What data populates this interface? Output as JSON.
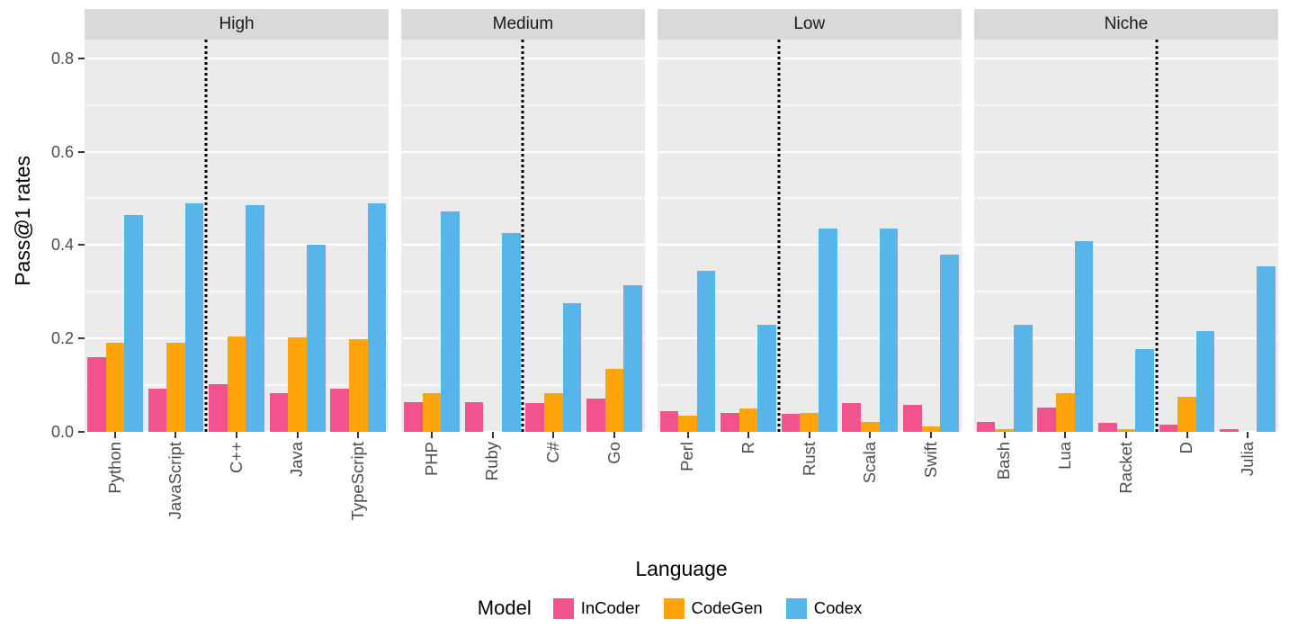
{
  "chart_data": {
    "type": "bar",
    "title": "",
    "xlabel": "Language",
    "ylabel": "Pass@1 rates",
    "ylim": [
      0,
      0.84
    ],
    "yticks": [
      0.0,
      0.2,
      0.4,
      0.6,
      0.8
    ],
    "grid": true,
    "legend_position": "bottom",
    "legend_title": "Model",
    "series_names": [
      "InCoder",
      "CodeGen",
      "Codex"
    ],
    "series_colors": [
      "#F0538D",
      "#FFA40B",
      "#58B5E9"
    ],
    "panel_background": "#ebebeb",
    "strip_background": "#d9d9d9",
    "facets": [
      {
        "label": "High",
        "divider_after_category": 2,
        "categories": [
          "Python",
          "JavaScript",
          "C++",
          "Java",
          "TypeScript"
        ],
        "series": [
          {
            "name": "InCoder",
            "values": [
              0.16,
              0.093,
              0.103,
              0.082,
              0.093
            ]
          },
          {
            "name": "CodeGen",
            "values": [
              0.19,
              0.19,
              0.205,
              0.203,
              0.199
            ]
          },
          {
            "name": "Codex",
            "values": [
              0.465,
              0.49,
              0.485,
              0.4,
              0.49
            ]
          }
        ]
      },
      {
        "label": "Medium",
        "divider_after_category": 2,
        "categories": [
          "PHP",
          "Ruby",
          "C#",
          "Go"
        ],
        "series": [
          {
            "name": "InCoder",
            "values": [
              0.063,
              0.063,
              0.062,
              0.072
            ]
          },
          {
            "name": "CodeGen",
            "values": [
              0.082,
              0.0,
              0.082,
              0.135
            ]
          },
          {
            "name": "Codex",
            "values": [
              0.473,
              0.426,
              0.275,
              0.315
            ]
          }
        ]
      },
      {
        "label": "Low",
        "divider_after_category": 2,
        "categories": [
          "Perl",
          "R",
          "Rust",
          "Scala",
          "Swift"
        ],
        "series": [
          {
            "name": "InCoder",
            "values": [
              0.045,
              0.04,
              0.038,
              0.062,
              0.058
            ]
          },
          {
            "name": "CodeGen",
            "values": [
              0.035,
              0.05,
              0.04,
              0.022,
              0.012
            ]
          },
          {
            "name": "Codex",
            "values": [
              0.345,
              0.23,
              0.435,
              0.435,
              0.38
            ]
          }
        ]
      },
      {
        "label": "Niche",
        "divider_after_category": 3,
        "categories": [
          "Bash",
          "Lua",
          "Racket",
          "D",
          "Julia"
        ],
        "series": [
          {
            "name": "InCoder",
            "values": [
              0.022,
              0.052,
              0.02,
              0.015,
              0.005
            ]
          },
          {
            "name": "CodeGen",
            "values": [
              0.006,
              0.083,
              0.006,
              0.075,
              0.0
            ]
          },
          {
            "name": "Codex",
            "values": [
              0.23,
              0.408,
              0.177,
              0.215,
              0.355
            ]
          }
        ]
      }
    ]
  }
}
